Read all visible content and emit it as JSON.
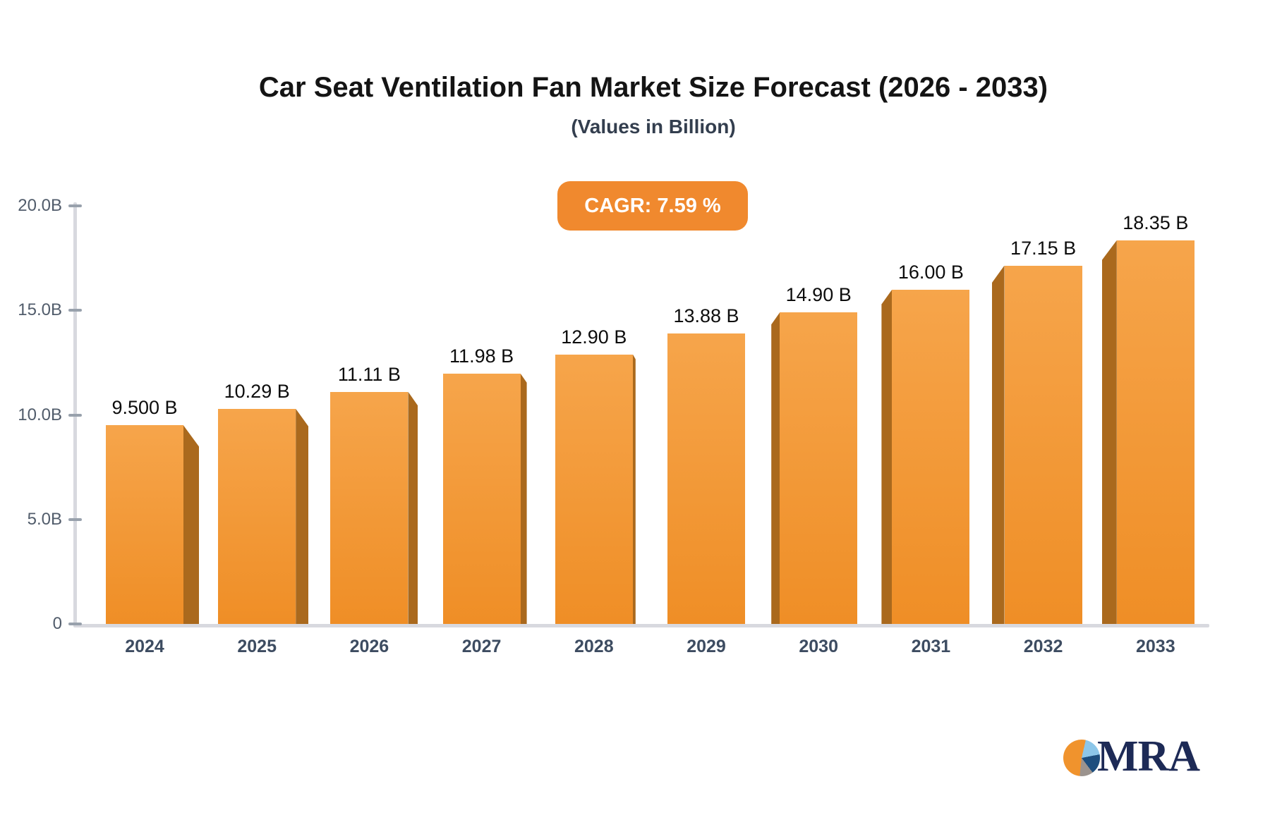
{
  "page": {
    "title": "Car Seat Ventilation Fan Market Size Forecast (2026 - 2033)",
    "subtitle": "(Values in Billion)",
    "cagr_badge": "CAGR: 7.59 %"
  },
  "chart_data": {
    "type": "bar",
    "title": "Car Seat Ventilation Fan Market Size Forecast (2026 - 2033)",
    "subtitle": "(Values in Billion)",
    "annotation": "CAGR: 7.59 %",
    "categories": [
      "2024",
      "2025",
      "2026",
      "2027",
      "2028",
      "2029",
      "2030",
      "2031",
      "2032",
      "2033"
    ],
    "values": [
      9.5,
      10.29,
      11.11,
      11.98,
      12.9,
      13.88,
      14.9,
      16.0,
      17.15,
      18.35
    ],
    "bar_labels": [
      "9.500 B",
      "10.29 B",
      "11.11 B",
      "11.98 B",
      "12.90 B",
      "13.88 B",
      "14.90 B",
      "16.00 B",
      "17.15 B",
      "18.35 B"
    ],
    "xlabel": "",
    "ylabel": "",
    "ylim": [
      0,
      20
    ],
    "y_ticks": [
      {
        "value": 0,
        "label": "0"
      },
      {
        "value": 5,
        "label": "5.0B"
      },
      {
        "value": 10,
        "label": "10.0B"
      },
      {
        "value": 15,
        "label": "15.0B"
      },
      {
        "value": 20,
        "label": "20.0B"
      }
    ],
    "grid": false,
    "legend": false,
    "colors": {
      "bar_top": "#f6a54b",
      "bar_bottom": "#ef8e26",
      "bar_side": "#aa691d",
      "axis": "#d8d9df",
      "tick_dash": "#98a1ac",
      "badge_bg": "#f0892e",
      "value_label": "#0d0d0d",
      "year_label": "#3d4c61"
    }
  },
  "logo": {
    "text": "MRA",
    "colors": {
      "text_navy": "#1d2a56",
      "pie_orange": "#f0932d",
      "pie_light_blue": "#8cc6e9",
      "pie_dark_blue": "#1d4e7e",
      "pie_gray": "#9b938e"
    }
  }
}
